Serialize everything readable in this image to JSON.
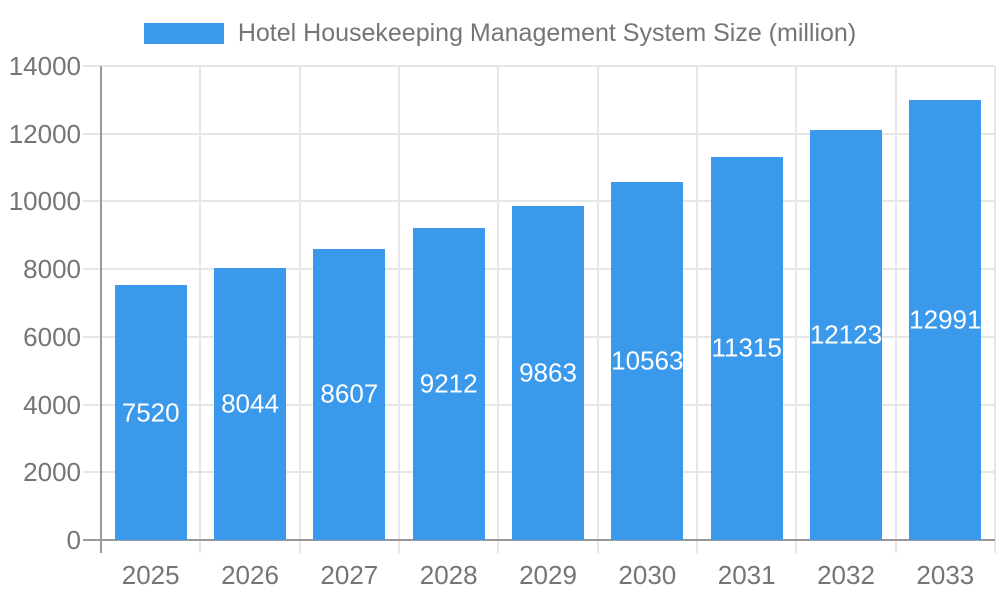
{
  "chart_data": {
    "type": "bar",
    "title": "Hotel Housekeeping Management System Size (million)",
    "legend": {
      "label": "Hotel Housekeeping Management System Size (million)",
      "position": "top"
    },
    "categories": [
      "2025",
      "2026",
      "2027",
      "2028",
      "2029",
      "2030",
      "2031",
      "2032",
      "2033"
    ],
    "values": [
      7520,
      8044,
      8607,
      9212,
      9863,
      10563,
      11315,
      12123,
      12991
    ],
    "value_labels": [
      "7520",
      "8044",
      "8607",
      "9212",
      "9863",
      "10563",
      "11315",
      "12123",
      "12991"
    ],
    "xlabel": "",
    "ylabel": "",
    "ylim": [
      0,
      14000
    ],
    "yticks": [
      0,
      2000,
      4000,
      6000,
      8000,
      10000,
      12000,
      14000
    ],
    "grid": true,
    "colors": {
      "bar": "#3B99EC",
      "value_label": "#FFFFFF",
      "axis": "#999999",
      "gridline": "#E6E6E6",
      "tick_text": "#757575",
      "title_text": "#757575",
      "background": "#FFFFFF"
    }
  }
}
